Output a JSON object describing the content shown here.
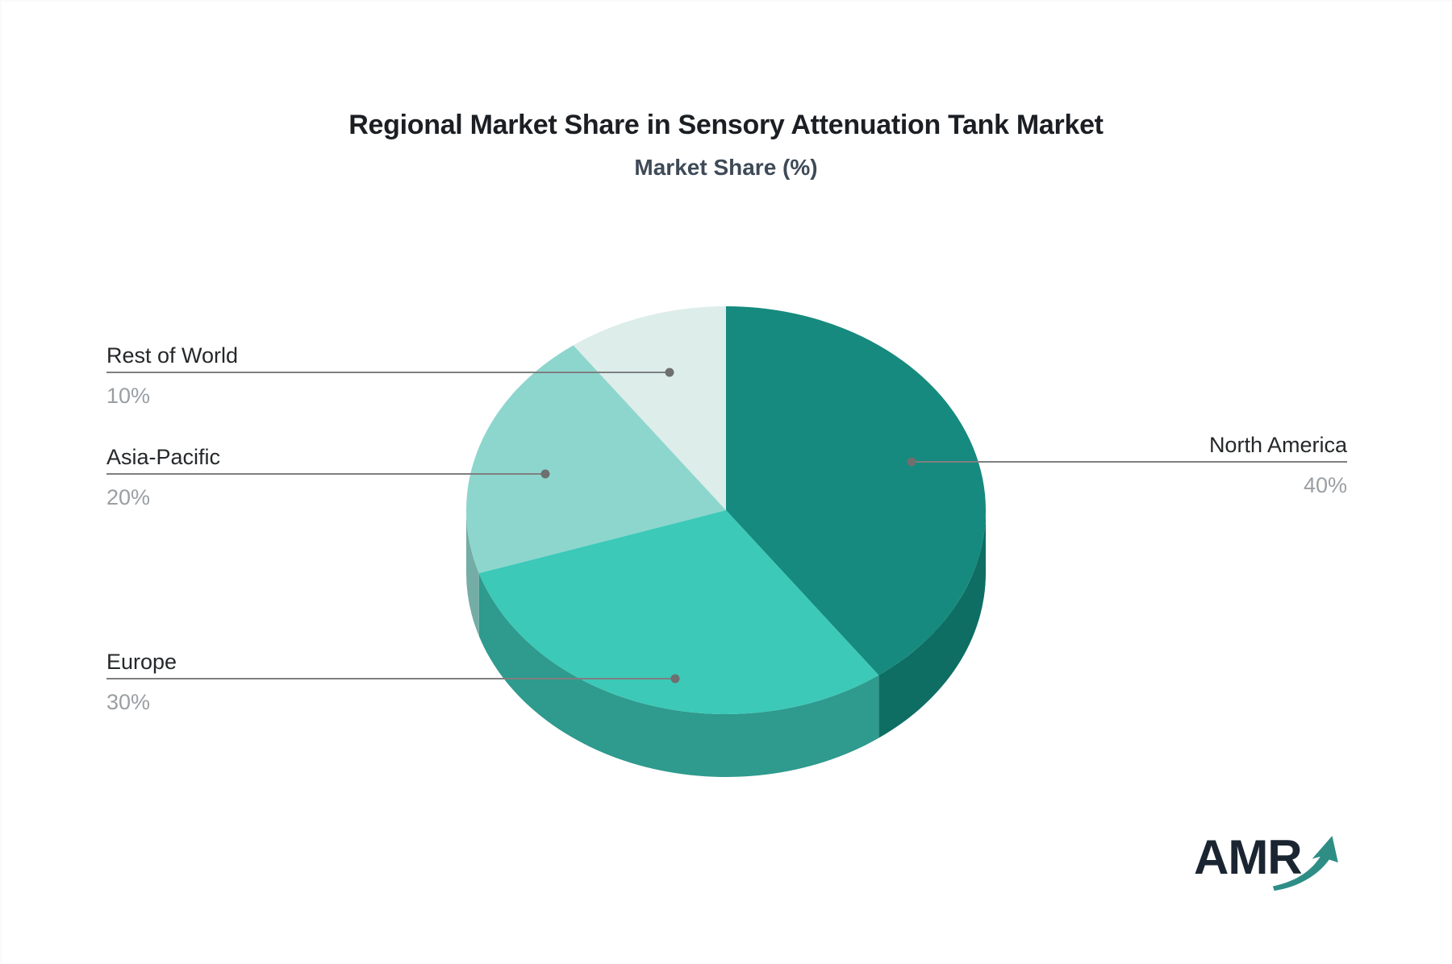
{
  "header": {
    "title": "Regional Market Share in Sensory Attenuation Tank Market",
    "subtitle": "Market Share (%)"
  },
  "chart_data": {
    "type": "pie",
    "style": "3d",
    "title": "Regional Market Share in Sensory Attenuation Tank Market",
    "subtitle": "Market Share (%)",
    "unit": "%",
    "start_angle_deg": 0,
    "direction": "clockwise",
    "categories": [
      "North America",
      "Europe",
      "Asia-Pacific",
      "Rest of World"
    ],
    "values": [
      40,
      30,
      20,
      10
    ],
    "slices": [
      {
        "label": "North America",
        "value": 40,
        "color": "#168a7e",
        "side_color": "#0e6e64"
      },
      {
        "label": "Europe",
        "value": 30,
        "color": "#3cc9b8",
        "side_color": "#2f9a8e"
      },
      {
        "label": "Asia-Pacific",
        "value": 20,
        "color": "#8dd6cd",
        "side_color": "#74ada5"
      },
      {
        "label": "Rest of World",
        "value": 10,
        "color": "#dcedea",
        "side_color": "#c2ddd8"
      }
    ],
    "legend": "none",
    "data_labels": "callouts with leader lines"
  },
  "callouts": [
    {
      "label": "Rest of World",
      "value": "10%"
    },
    {
      "label": "Asia-Pacific",
      "value": "20%"
    },
    {
      "label": "Europe",
      "value": "30%"
    },
    {
      "label": "North America",
      "value": "40%"
    }
  ],
  "logo": {
    "text": "AMR"
  },
  "colors": {
    "title": "#1b1f24",
    "subtitle": "#3e4a57",
    "callout_label": "#25282a",
    "callout_value": "#9a9fa3",
    "leader_line": "#7f7f7f",
    "leader_dot": "#6f6f6f",
    "logo_navy": "#1b2532",
    "logo_teal": "#2e8e86",
    "background": "#ffffff"
  }
}
